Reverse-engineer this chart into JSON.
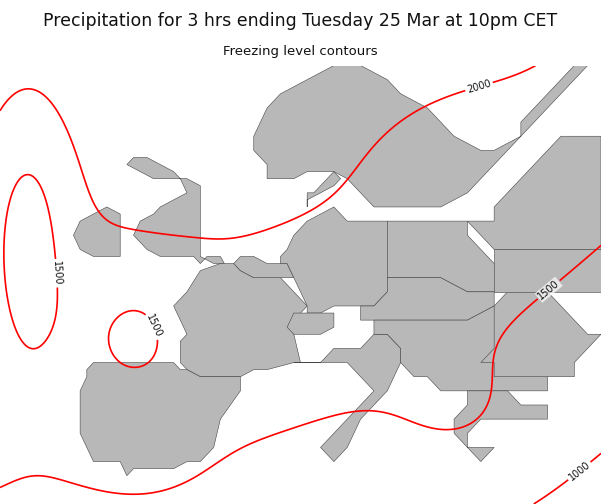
{
  "title": "Precipitation for 3 hrs ending Tuesday 25 Mar at 10pm CET",
  "subtitle": "Freezing level contours",
  "title_fontsize": 12.5,
  "subtitle_fontsize": 9.5,
  "title_color": "#111111",
  "background_color": "#ffffff",
  "map_ocean_color": "#c8d0e8",
  "map_land_color_light": "#c0c0c0",
  "map_land_color_dark": "#989898",
  "contour_color": "#ff0000",
  "contour_label_color": "#111111",
  "contour_linewidth": 1.2,
  "figsize": [
    6.01,
    5.04
  ],
  "dpi": 100,
  "extent_lon": [
    -15.0,
    30.0
  ],
  "extent_lat": [
    34.0,
    65.0
  ]
}
